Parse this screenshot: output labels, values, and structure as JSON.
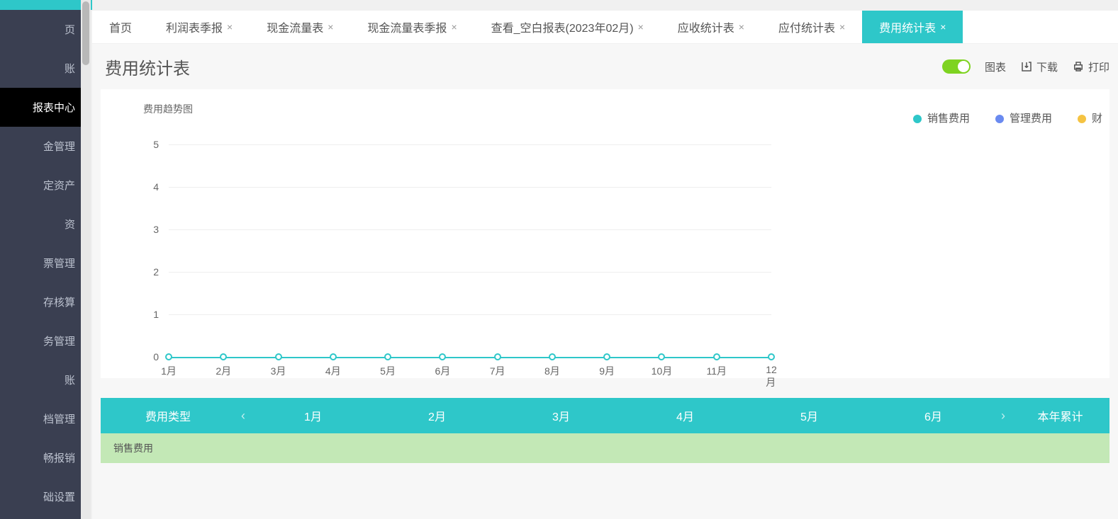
{
  "sidebar": {
    "items": [
      "页",
      "账",
      "报表中心",
      "金管理",
      "定资产",
      "资",
      "票管理",
      "存核算",
      "务管理",
      "账",
      "档管理",
      "畅报销",
      "础设置"
    ],
    "active_index": 2
  },
  "tabs": {
    "items": [
      {
        "label": "首页",
        "closable": false
      },
      {
        "label": "利润表季报",
        "closable": true
      },
      {
        "label": "现金流量表",
        "closable": true
      },
      {
        "label": "现金流量表季报",
        "closable": true
      },
      {
        "label": "查看_空白报表(2023年02月)",
        "closable": true
      },
      {
        "label": "应收统计表",
        "closable": true
      },
      {
        "label": "应付统计表",
        "closable": true
      },
      {
        "label": "费用统计表",
        "closable": true
      }
    ],
    "active_index": 7
  },
  "page": {
    "title": "费用统计表",
    "toggle_label": "图表",
    "download_label": "下载",
    "print_label": "打印"
  },
  "chart": {
    "title": "费用趋势图",
    "type": "line",
    "categories": [
      "1月",
      "2月",
      "3月",
      "4月",
      "5月",
      "6月",
      "7月",
      "8月",
      "9月",
      "10月",
      "11月",
      "12月"
    ],
    "series": [
      {
        "name": "销售费用",
        "color": "#2ec7c9",
        "data": [
          0,
          0,
          0,
          0,
          0,
          0,
          0,
          0,
          0,
          0,
          0,
          0
        ]
      },
      {
        "name": "管理费用",
        "color": "#6a8af0",
        "data": [
          0,
          0,
          0,
          0,
          0,
          0,
          0,
          0,
          0,
          0,
          0,
          0
        ]
      },
      {
        "name": "财",
        "color": "#f5c342",
        "data": [
          0,
          0,
          0,
          0,
          0,
          0,
          0,
          0,
          0,
          0,
          0,
          0
        ]
      }
    ],
    "ylim": [
      0,
      5
    ],
    "ytick_step": 1,
    "grid_color": "#eeeeee",
    "background": "#ffffff",
    "marker_style": "hollow-circle",
    "marker_size": 10,
    "line_width": 2,
    "label_color": "#666666",
    "label_fontsize": 14
  },
  "table": {
    "type_header": "费用类型",
    "month_headers": [
      "1月",
      "2月",
      "3月",
      "4月",
      "5月",
      "6月"
    ],
    "total_header": "本年累计",
    "header_bg": "#2ec7c9",
    "header_color": "#ffffff",
    "row_bg": "#c3e8b6",
    "rows": [
      {
        "type": "销售费用"
      }
    ]
  }
}
